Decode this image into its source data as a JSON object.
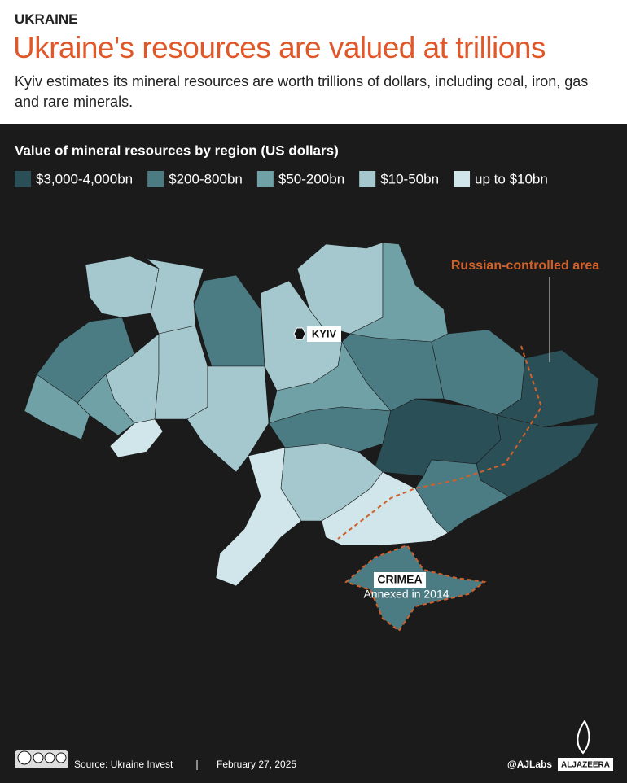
{
  "header": {
    "kicker": "UKRAINE",
    "title": "Ukraine's resources are valued at trillions",
    "subtitle": "Kyiv estimates its mineral resources are worth trillions of dollars, including coal, iron, gas and rare minerals."
  },
  "map": {
    "title": "Value of mineral resources by region (US dollars)",
    "legend": [
      {
        "label": "$3,000-4,000bn",
        "color": "#2a4f56"
      },
      {
        "label": "$200-800bn",
        "color": "#4b7b83"
      },
      {
        "label": "$50-200bn",
        "color": "#70a1a7"
      },
      {
        "label": "$10-50bn",
        "color": "#a4c8ce"
      },
      {
        "label": "up to $10bn",
        "color": "#d0e6ea"
      }
    ],
    "annotations": {
      "controlled": "Russian-controlled area",
      "kyiv": "KYIV",
      "crimea": "CRIMEA",
      "crimea_note": "Annexed in 2014"
    },
    "controlled_color": "#d0612a"
  },
  "footer": {
    "source": "Source:  Ukraine Invest",
    "date": "February 27, 2025",
    "handle": "@AJLabs",
    "brand": "ALJAZEERA"
  }
}
